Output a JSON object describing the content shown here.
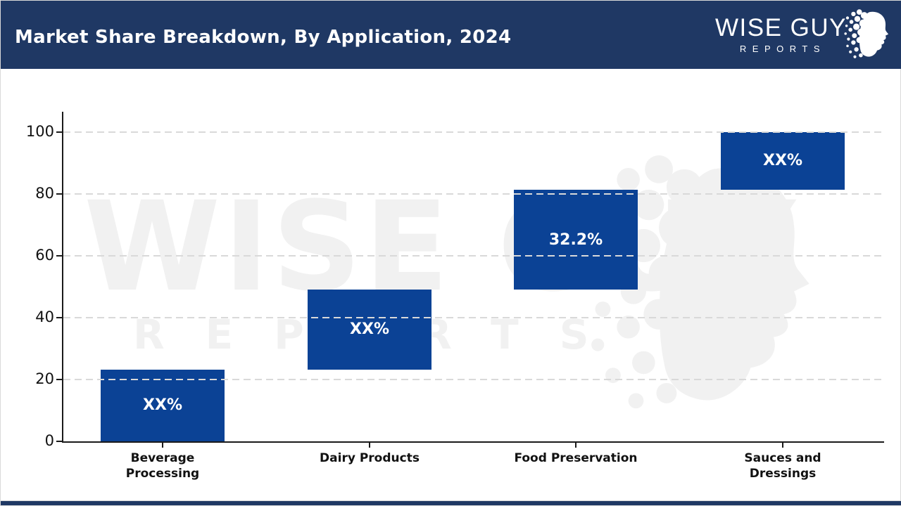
{
  "header": {
    "title": "Market Share Breakdown, By Application, 2024",
    "logo": {
      "wordmark": "WISE GUY",
      "subtext": "REPORTS"
    }
  },
  "watermark": {
    "line1": "WISE GUY",
    "line2": "REPORTS"
  },
  "colors": {
    "header_bg": "#1f3864",
    "footer_bg": "#1f3864",
    "bar_blue": "#0b4295",
    "grid_line": "#d9d9d9",
    "axis_black": "#1a1a1a",
    "watermark_gray": "#f1f1f1",
    "bar_label_white": "#ffffff"
  },
  "chart_data": {
    "type": "bar",
    "subtype": "floating-waterfall",
    "title": "Market Share Breakdown, By Application, 2024",
    "categories": [
      "Beverage Processing",
      "Dairy Products",
      "Food Preservation",
      "Sauces and Dressings"
    ],
    "category_label_lines": [
      [
        "Beverage",
        "Processing"
      ],
      [
        "Dairy Products"
      ],
      [
        "Food Preservation"
      ],
      [
        "Sauces and",
        "Dressings"
      ]
    ],
    "segments": [
      {
        "category": "Beverage Processing",
        "start": 0,
        "end": 23.2,
        "label": "XX%"
      },
      {
        "category": "Dairy Products",
        "start": 23.2,
        "end": 49.0,
        "label": "XX%"
      },
      {
        "category": "Food Preservation",
        "start": 49.0,
        "end": 81.2,
        "label": "32.2%"
      },
      {
        "category": "Sauces and Dressings",
        "start": 81.2,
        "end": 100,
        "label": "XX%"
      }
    ],
    "xlabel": "",
    "ylabel": "",
    "ylim": [
      0,
      100
    ],
    "yticks": [
      0,
      20,
      40,
      60,
      80,
      100
    ],
    "grid": {
      "horizontal": true,
      "style": "dashed",
      "drawn_over_bars": true
    },
    "legend": "none"
  }
}
